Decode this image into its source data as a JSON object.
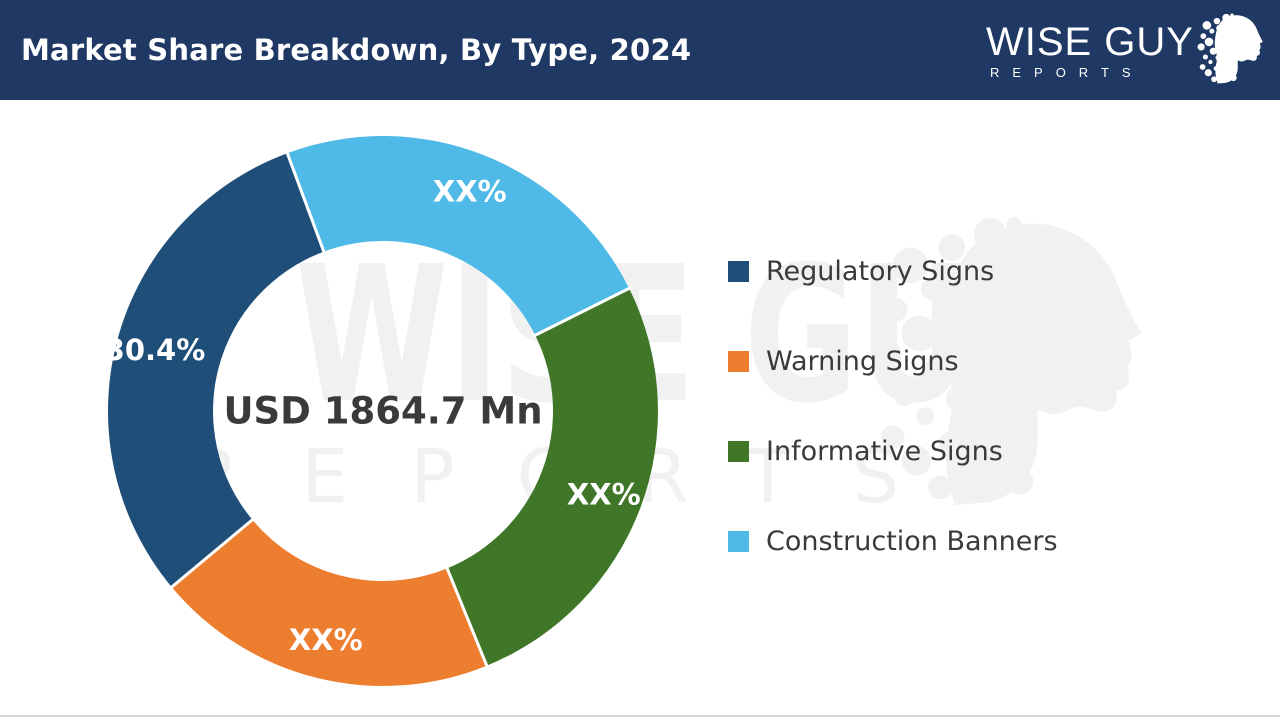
{
  "header": {
    "title": "Market Share Breakdown, By Type, 2024",
    "background_color": "#1f3864",
    "logo": {
      "line1": "WISE GUY",
      "line2": "REPORTS"
    }
  },
  "watermark": {
    "line1": "WISE GUY",
    "line2": "REPORTS"
  },
  "chart_data": {
    "type": "pie",
    "subtype": "donut",
    "title": "Market Share Breakdown, By Type, 2024",
    "center_label": "USD 1864.7 Mn",
    "start_angle_deg": 230.2,
    "direction": "clockwise",
    "segments": [
      {
        "label": "Regulatory Signs",
        "value": 30.4,
        "display_label": "30.4%",
        "color": "#1f4e79"
      },
      {
        "label": "Construction Banners",
        "value": 23.3,
        "display_label": "XX%",
        "color": "#4fbae7"
      },
      {
        "label": "Informative Signs",
        "value": 26.2,
        "display_label": "XX%",
        "color": "#3f7628"
      },
      {
        "label": "Warning Signs",
        "value": 20.1,
        "display_label": "XX%",
        "color": "#ed7e30"
      }
    ]
  },
  "legend": {
    "items": [
      {
        "label": "Regulatory Signs",
        "color": "#1f4e79"
      },
      {
        "label": "Warning Signs",
        "color": "#ed7e30"
      },
      {
        "label": "Informative Signs",
        "color": "#3f7628"
      },
      {
        "label": "Construction Banners",
        "color": "#4fbae7"
      }
    ]
  },
  "theme": {
    "header_background": "#1f3864",
    "page_background": "#ffffff",
    "text_dark": "#3a3a3a",
    "label_on_slice": "#ffffff",
    "watermark_color": "#f1f1f1",
    "divider_color": "#d8d8d8"
  }
}
